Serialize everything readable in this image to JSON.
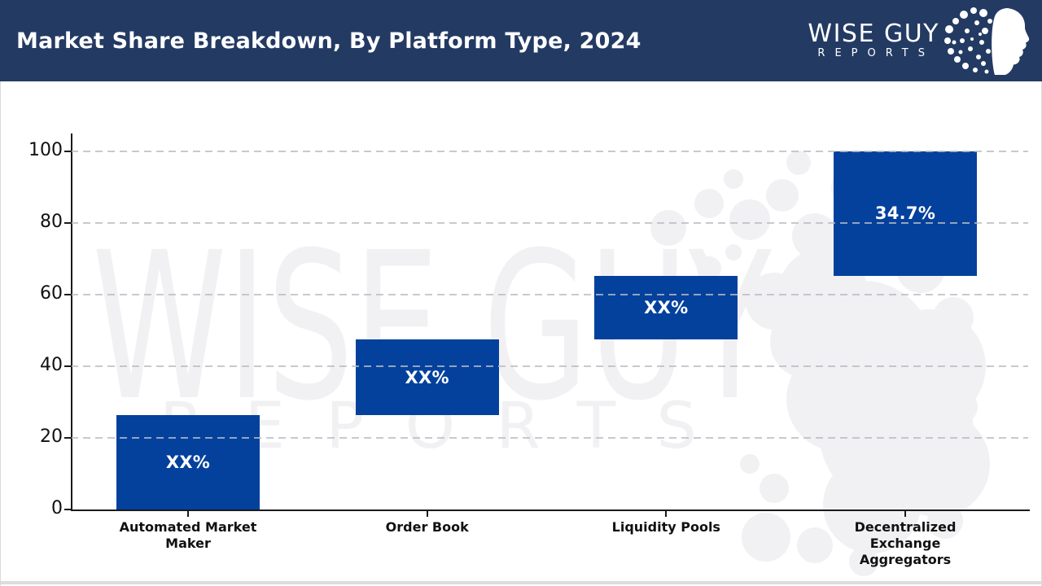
{
  "header": {
    "title": "Market Share Breakdown, By Platform Type, 2024",
    "brand": {
      "name": "WISE GUY",
      "subtitle": "REPORTS"
    }
  },
  "watermark": {
    "line1": "WISE GUY",
    "line2": "REPORTS"
  },
  "chart_data": {
    "type": "bar",
    "subtype": "floating-waterfall",
    "title": "Market Share Breakdown, By Platform Type, 2024",
    "categories": [
      "Automated Market Maker",
      "Order Book",
      "Liquidity Pools",
      "Decentralized Exchange Aggregators"
    ],
    "segments": [
      {
        "start": 0,
        "end": 26.3,
        "label": "XX%"
      },
      {
        "start": 26.3,
        "end": 47.5,
        "label": "XX%"
      },
      {
        "start": 47.5,
        "end": 65.3,
        "label": "XX%"
      },
      {
        "start": 65.3,
        "end": 100,
        "label": "34.7%"
      }
    ],
    "yticks": [
      0,
      20,
      40,
      60,
      80,
      100
    ],
    "ylim": [
      0,
      100
    ],
    "xlabel": "",
    "ylabel": "",
    "grid": "dashed-horizontal",
    "legend": "none",
    "bar_color": "#04419d",
    "bar_label_color": "#ffffff"
  },
  "colors": {
    "header_bg": "#233a63",
    "bar": "#04419d",
    "gridline": "#c9ccd4",
    "axis": "#1a1a1a",
    "watermark": "#f1f1f3",
    "page_border": "#d9d9d9"
  }
}
